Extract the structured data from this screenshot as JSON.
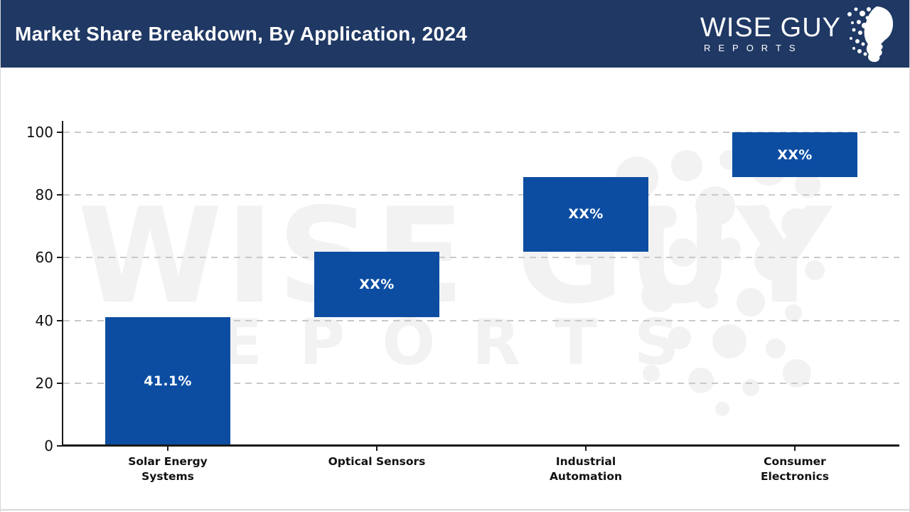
{
  "header": {
    "title": "Market Share Breakdown, By Application, 2024",
    "logo": {
      "wordmark": "WISE GUY",
      "subtext": "REPORTS"
    }
  },
  "watermark": {
    "line1": "WISE GUY",
    "line2": "REPORTS"
  },
  "chart_data": {
    "type": "bar",
    "variant": "floating-segment-waterfall",
    "title": "Market Share Breakdown, By Application, 2024",
    "unit": "%",
    "categories": [
      "Solar Energy\nSystems",
      "Optical Sensors",
      "Industrial\nAutomation",
      "Consumer\nElectronics"
    ],
    "series": [
      {
        "name": "Market share by application, 2024",
        "segments": [
          {
            "category": "Solar Energy Systems",
            "start": 0,
            "end": 41.1,
            "label": "41.1%"
          },
          {
            "category": "Optical Sensors",
            "start": 41.1,
            "end": 62.0,
            "label": "XX%"
          },
          {
            "category": "Industrial Automation",
            "start": 62.0,
            "end": 85.7,
            "label": "XX%"
          },
          {
            "category": "Consumer Electronics",
            "start": 85.7,
            "end": 100,
            "label": "XX%"
          }
        ]
      }
    ],
    "ylim": [
      0,
      100
    ],
    "yticks": [
      0,
      20,
      40,
      60,
      80,
      100
    ],
    "grid": "horizontal-dashed",
    "legend": "none"
  },
  "colors": {
    "header_bg": "#1f3864",
    "bar_fill": "#0c4da2",
    "bar_label": "#ffffff",
    "axis": "#1a1a1a",
    "gridline": "#c9c9c9",
    "watermark": "#f2f2f2",
    "background": "#ffffff",
    "border_line": "#d9d9d9"
  }
}
